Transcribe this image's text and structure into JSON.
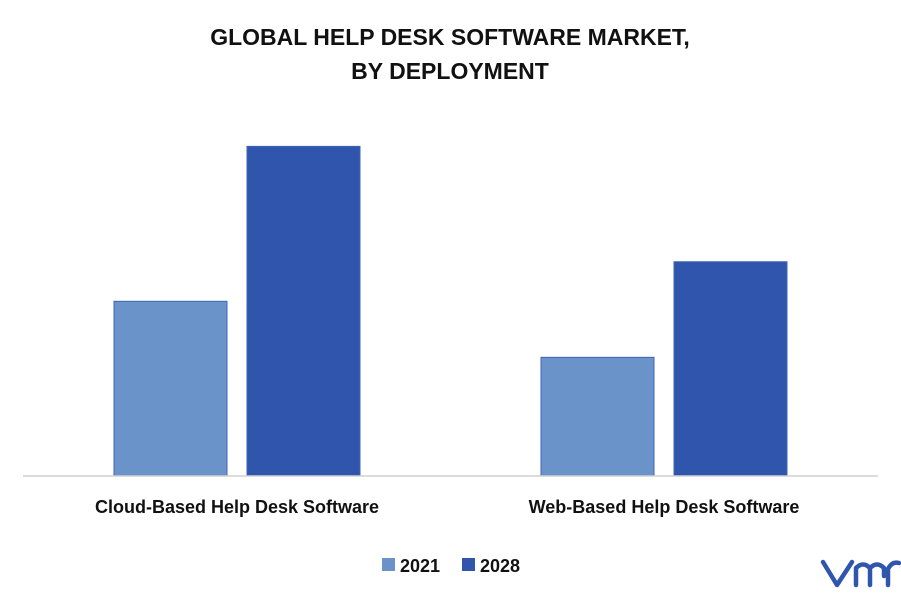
{
  "chart_data": {
    "type": "bar",
    "title_line1": "GLOBAL HELP DESK SOFTWARE MARKET,",
    "title_line2": "BY DEPLOYMENT",
    "categories": [
      "Cloud-Based Help Desk Software",
      "Web-Based Help Desk Software"
    ],
    "series": [
      {
        "name": "2021",
        "values": [
          53,
          36
        ],
        "color": "#6a93ca"
      },
      {
        "name": "2028",
        "values": [
          100,
          65
        ],
        "color": "#2f55ad"
      }
    ],
    "ylim": [
      0,
      108
    ],
    "yaxis_visible": false,
    "grid": false,
    "legend": "bottom-center"
  },
  "brand": {
    "logo_text": "vmr",
    "color": "#2f55ad"
  }
}
